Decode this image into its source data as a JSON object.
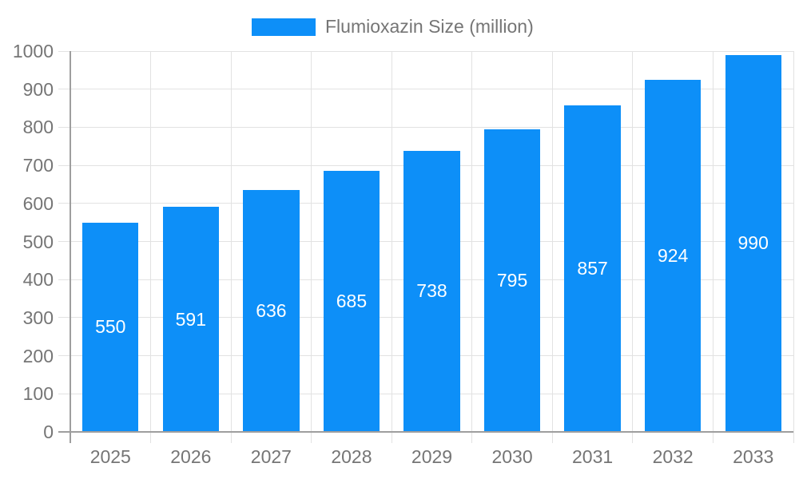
{
  "legend": {
    "label": "Flumioxazin Size (million)"
  },
  "colors": {
    "bar": "#0d8ff8",
    "grid": "#e2e2e2",
    "axis": "#9e9e9e",
    "text": "#757575",
    "value_label": "#ffffff",
    "background": "#ffffff"
  },
  "chart_data": {
    "type": "bar",
    "title": "Flumioxazin Size (million)",
    "categories": [
      "2025",
      "2026",
      "2027",
      "2028",
      "2029",
      "2030",
      "2031",
      "2032",
      "2033"
    ],
    "series": [
      {
        "name": "Flumioxazin Size (million)",
        "values": [
          550,
          591,
          636,
          685,
          738,
          795,
          857,
          924,
          990
        ]
      }
    ],
    "xlabel": "",
    "ylabel": "",
    "ylim": [
      0,
      1000
    ],
    "yticks": [
      0,
      100,
      200,
      300,
      400,
      500,
      600,
      700,
      800,
      900,
      1000
    ],
    "grid": true,
    "legend_position": "top-center",
    "value_label_position": "inside-middle",
    "bar_color": "#0d8ff8"
  }
}
